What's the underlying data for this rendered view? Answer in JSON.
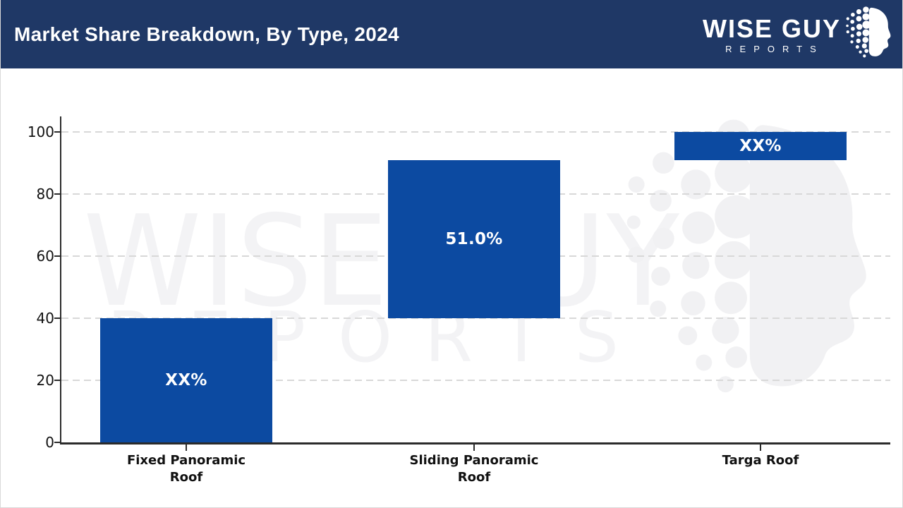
{
  "header": {
    "title": "Market Share Breakdown, By Type, 2024",
    "logo": {
      "brand_top": "WISE GUY",
      "brand_bottom": "REPORTS"
    }
  },
  "watermark": {
    "line1": "WISE GUY",
    "line2": "REPORTS"
  },
  "chart_data": {
    "type": "bar",
    "subtype": "stacked-waterfall",
    "title": "Market Share Breakdown, By Type, 2024",
    "categories": [
      "Fixed Panoramic\nRoof",
      "Sliding Panoramic\nRoof",
      "Targa Roof"
    ],
    "bars": [
      {
        "category": "Fixed Panoramic Roof",
        "start": 0,
        "end": 40,
        "label": "XX%"
      },
      {
        "category": "Sliding Panoramic Roof",
        "start": 40,
        "end": 91,
        "label": "51.0%"
      },
      {
        "category": "Targa Roof",
        "start": 91,
        "end": 100,
        "label": "XX%"
      }
    ],
    "ylim": [
      0,
      100
    ],
    "yticks": [
      "0",
      "20",
      "40",
      "60",
      "80",
      "100"
    ],
    "grid": "horizontal-dashed",
    "legend": "none",
    "colors": {
      "bar": "#0c4aa1",
      "bar_label": "#ffffff",
      "header_bg": "#1f3866",
      "grid": "#d8d8d8",
      "axis": "#2b2b2b",
      "tick_text": "#111111"
    }
  }
}
